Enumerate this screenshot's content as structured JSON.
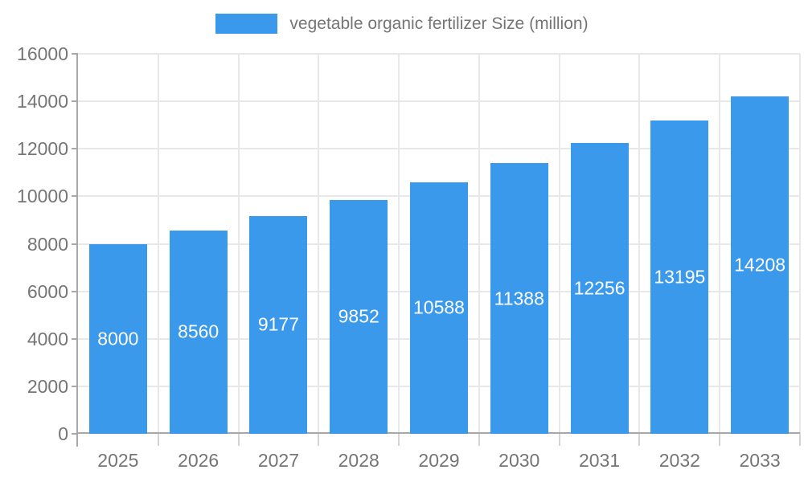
{
  "chart_data": {
    "type": "bar",
    "title": "",
    "legend": {
      "label": "vegetable organic fertilizer Size (million)",
      "position": "top"
    },
    "categories": [
      "2025",
      "2026",
      "2027",
      "2028",
      "2029",
      "2030",
      "2031",
      "2032",
      "2033"
    ],
    "series": [
      {
        "name": "vegetable organic fertilizer Size (million)",
        "values": [
          8000,
          8560,
          9177,
          9852,
          10588,
          11388,
          12256,
          13195,
          14208
        ]
      }
    ],
    "xlabel": "",
    "ylabel": "",
    "ylim": [
      0,
      16000
    ],
    "y_ticks": [
      0,
      2000,
      4000,
      6000,
      8000,
      10000,
      12000,
      14000,
      16000
    ],
    "grid": true,
    "value_labels": "inside-middle",
    "colors": {
      "bar": "#3b99ec",
      "axis_text": "#757575",
      "value_label_text": "#ffffff",
      "grid_line": "#e8e8e8",
      "axis_line": "#a8a8a8",
      "minor_tick": "#d4d4d4",
      "background": "#ffffff"
    }
  }
}
